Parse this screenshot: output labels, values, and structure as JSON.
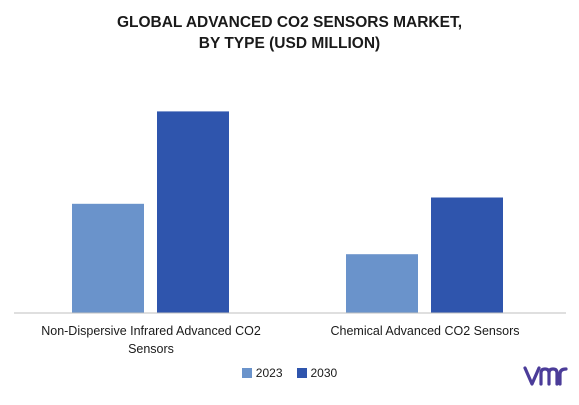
{
  "chart_data": {
    "type": "bar",
    "title_line1": "GLOBAL ADVANCED CO2 SENSORS MARKET,",
    "title_line2": "BY TYPE (USD MILLION)",
    "categories": [
      "Non-Dispersive Infrared Advanced CO2 Sensors",
      "Chemical Advanced CO2 Sensors"
    ],
    "series": [
      {
        "name": "2023",
        "color": "#6a93cb",
        "values": [
          52,
          28
        ]
      },
      {
        "name": "2030",
        "color": "#2f55ad",
        "values": [
          96,
          55
        ]
      }
    ],
    "ylim": [
      0,
      100
    ],
    "grid": false,
    "legend_position": "bottom-center"
  }
}
